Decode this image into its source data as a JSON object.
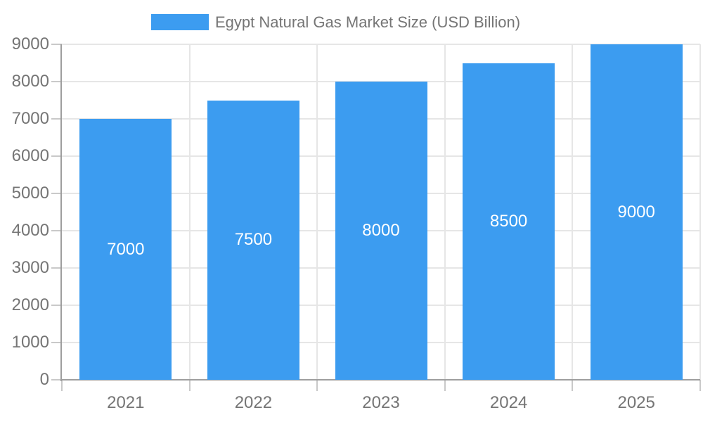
{
  "chart_data": {
    "type": "bar",
    "title": "Egypt Natural Gas Market Size (USD Billion)",
    "categories": [
      "2021",
      "2022",
      "2023",
      "2024",
      "2025"
    ],
    "series": [
      {
        "name": "Egypt Natural Gas Market Size (USD Billion)",
        "values": [
          7000,
          7500,
          8000,
          8500,
          9000
        ]
      }
    ],
    "bar_labels": [
      "7000",
      "7500",
      "8000",
      "8500",
      "9000"
    ],
    "xlabel": "",
    "ylabel": "",
    "ylim": [
      0,
      9000
    ],
    "ytick_step": 1000,
    "yticks": [
      0,
      1000,
      2000,
      3000,
      4000,
      5000,
      6000,
      7000,
      8000,
      9000
    ],
    "grid": true,
    "legend_position": "top-center",
    "colors": {
      "bar": "#3C9CF0",
      "axis_text": "#757575",
      "legend_text": "#757575",
      "value_label": "#ffffff",
      "gridline": "#e6e6e6",
      "tick": "#c9c9c9",
      "axis_line": "#9e9e9e",
      "background": "#ffffff"
    }
  }
}
